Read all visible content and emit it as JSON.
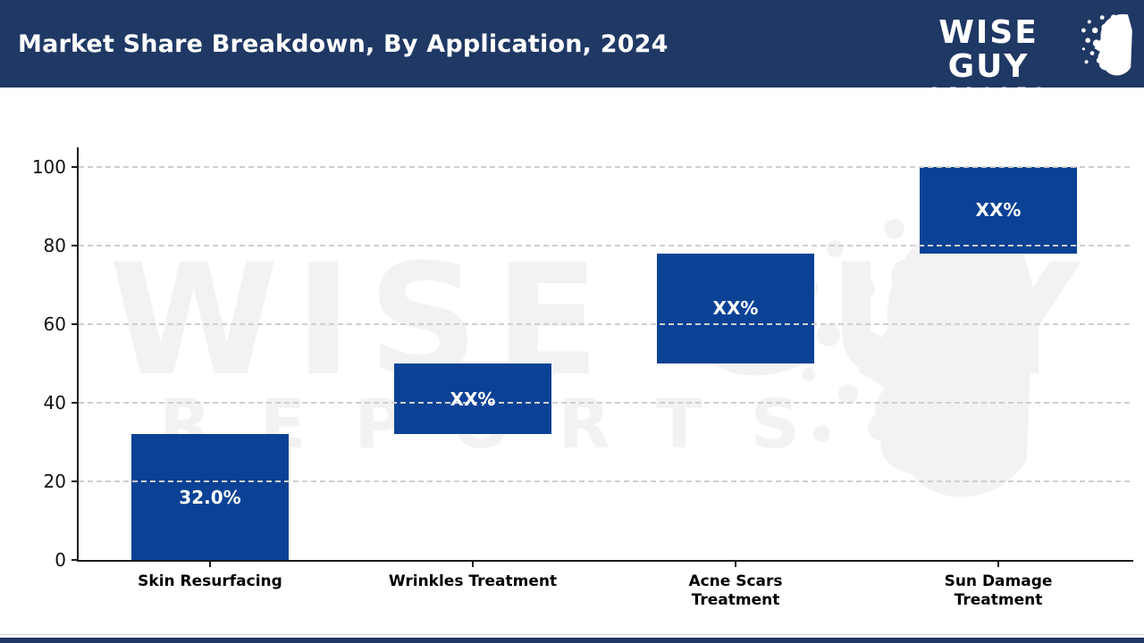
{
  "header": {
    "title": "Market Share Breakdown, By Application, 2024",
    "logo_line1": "WISE GUY",
    "logo_line2": "REPORTS"
  },
  "watermark": {
    "line1": "WISE GUY",
    "line2": "REPORTS"
  },
  "chart_data": {
    "type": "bar",
    "subtype": "waterfall",
    "title": "Market Share Breakdown, By Application, 2024",
    "categories": [
      "Skin Resurfacing",
      "Wrinkles Treatment",
      "Acne Scars\nTreatment",
      "Sun Damage\nTreatment"
    ],
    "bars": [
      {
        "category": "Skin Resurfacing",
        "start": 0,
        "end": 32,
        "label": "32.0%"
      },
      {
        "category": "Wrinkles Treatment",
        "start": 32,
        "end": 50,
        "label": "XX%"
      },
      {
        "category": "Acne Scars Treatment",
        "start": 50,
        "end": 78,
        "label": "XX%"
      },
      {
        "category": "Sun Damage Treatment",
        "start": 78,
        "end": 100,
        "label": "XX%"
      }
    ],
    "y_ticks": [
      0,
      20,
      40,
      60,
      80,
      100
    ],
    "ylim": [
      0,
      105
    ],
    "xlabel": "",
    "ylabel": "",
    "grid": "horizontal-dashed",
    "legend": false,
    "bar_color": "#0b4296",
    "header_color": "#1f3864",
    "grid_color": "#cfcfcf"
  }
}
